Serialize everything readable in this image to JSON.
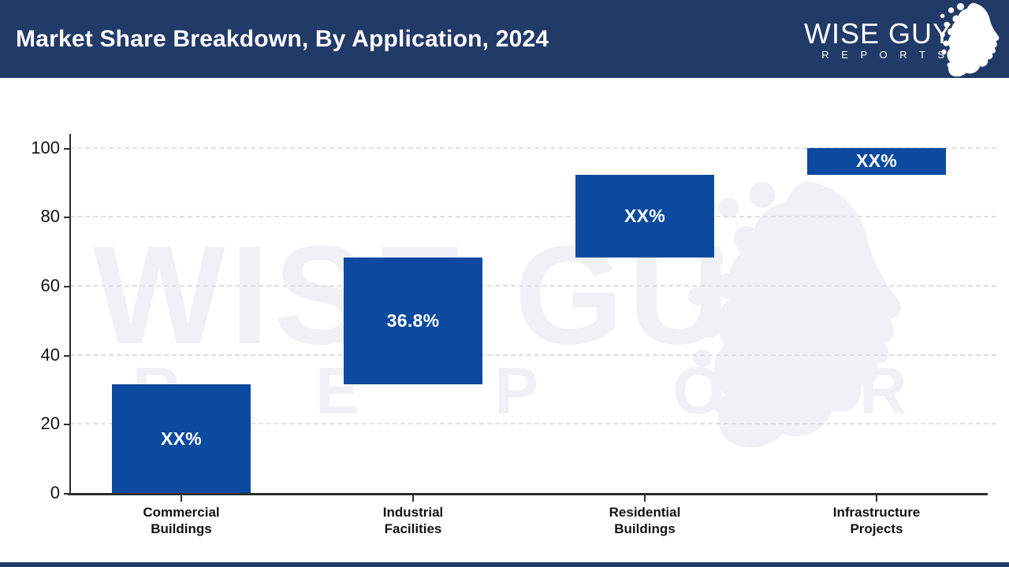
{
  "header": {
    "title": "Market Share Breakdown, By Application, 2024",
    "logo": {
      "brand_line1": "WISE GUY",
      "brand_line2": "R E P O R T S"
    }
  },
  "watermark": {
    "line1": "WISE GUY",
    "line2": "R E P O R T S"
  },
  "colors": {
    "header_bg": "#213a68",
    "footer_bg": "#213a68",
    "bar_fill": "#0b4a9e",
    "bar_label_text": "#ffffff",
    "grid_line": "#e0e0e0",
    "axis_line": "#2d2d2d",
    "tick_text": "#121212",
    "watermark": "#f0f1f4"
  },
  "chart_data": {
    "type": "bar",
    "subtype": "waterfall",
    "title": "Market Share Breakdown, By Application, 2024",
    "categories": [
      "Commercial\nBuildings",
      "Industrial\nFacilities",
      "Residential\nBuildings",
      "Infrastructure\nProjects"
    ],
    "segments": [
      {
        "category": "Commercial Buildings",
        "label": "XX%",
        "start": 0,
        "end": 31.4,
        "value": 31.4
      },
      {
        "category": "Industrial Facilities",
        "label": "36.8%",
        "start": 31.4,
        "end": 68.2,
        "value": 36.8
      },
      {
        "category": "Residential Buildings",
        "label": "XX%",
        "start": 68.2,
        "end": 92.2,
        "value": 24.0
      },
      {
        "category": "Infrastructure Projects",
        "label": "XX%",
        "start": 92.2,
        "end": 100.0,
        "value": 7.8
      }
    ],
    "yticks": [
      0,
      20,
      40,
      60,
      80,
      100
    ],
    "ylim": [
      0,
      104
    ],
    "grid": "horizontal-dashed",
    "legend": "none",
    "xlabel": "",
    "ylabel": ""
  }
}
